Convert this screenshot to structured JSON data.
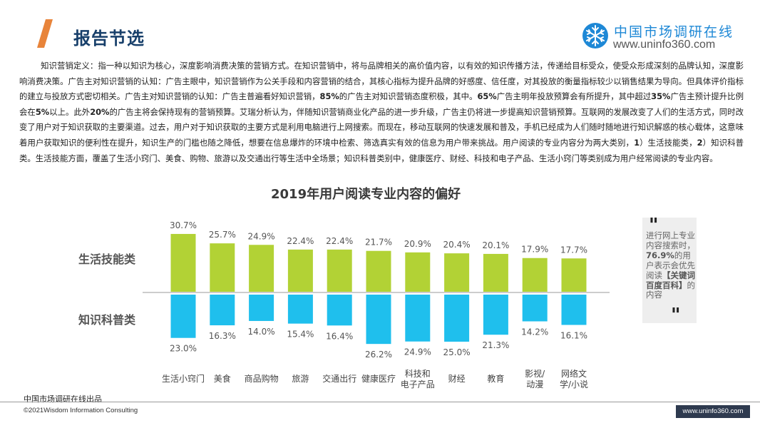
{
  "header": {
    "title": "报告节选",
    "accent_color": "#e8843a",
    "title_color": "#173f6a"
  },
  "logo": {
    "icon": "snowflake-logo-icon",
    "name_cn": "中国市场调研在线",
    "url": "www.uninfo360.com",
    "brand_color": "#1e88d6"
  },
  "body_text": {
    "p1": "知识营销定义：指一种以知识为核心，深度影响消费决策的营销方式。在知识营销中，将与品牌相关的高价值内容，以有效的知识传播方法，传递给目标受众，使受众形成深刻的品牌认知，深度影响消费决策。广告主对知识营销的认知：广告主眼中，知识营销作为公关手段和内容营销的结合，其核心指标为提升品牌的好感度、信任度，对其投放的衡量指标较少以销售结果为导向。但具体评价指标的建立与投放方式密切相关。广告主对知识营销的认知：广告主普遍看好知识营销，",
    "b1": "85%",
    "p2": "的广告主对知识营销态度积极，其中。",
    "b2": "65%",
    "p3": "广告主明年投放预算会有所提升，其中超过",
    "b3": "35%",
    "p4": "广告主预计提升比例会在",
    "b4": "5%",
    "p5": "以上。此外",
    "b5": "20%",
    "p6": "的广告主将会保持现有的营销预算。艾瑞分析认为，伴随知识营销商业化产品的进一步升级，广告主仍将进一步提高知识营销预算。互联网的发展改变了人们的生活方式，同时改变了用户对于知识获取的主要渠道。过去，用户对于知识获取的主要方式是利用电脑进行上网搜索。而现在，移动互联网的快速发展和普及，手机已经成为人们随时随地进行知识解惑的核心载体，这意味着用户获取知识的便利性在提升，知识生产的门槛也随之降低，想要在信息爆炸的环境中检索、筛选真实有效的信息为用户带来挑战。用户阅读的专业内容分为两大类别，",
    "b6": "1",
    "p7": "）生活技能类，",
    "b7": "2",
    "p8": "）知识科普类。生活技能方面，覆盖了生活小窍门、美食、购物、旅游以及交通出行等生活中全场景；知识科普类别中，健康医疗、财经、科技和电子产品、生活小窍门等类别成为用户经常阅读的专业内容。"
  },
  "chart_data": {
    "type": "bar",
    "title": "2019年用户阅读专业内容的偏好",
    "xlabel": "",
    "ylabel": "",
    "unit": "%",
    "layout": "diverging (series 1 above baseline, series 2 below)",
    "categories": [
      "生活小窍门",
      "美食",
      "商品购物",
      "旅游",
      "交通出行",
      "健康医疗",
      "科技和\n电子产品",
      "财经",
      "教育",
      "影视/\n动漫",
      "网络文\n学/小说"
    ],
    "series": [
      {
        "name": "生活技能类",
        "color": "#b2d235",
        "values": [
          30.7,
          25.7,
          24.9,
          22.4,
          22.4,
          21.7,
          20.9,
          20.4,
          20.1,
          17.9,
          17.7
        ],
        "labels": [
          "30.7%",
          "25.7%",
          "24.9%",
          "22.4%",
          "22.4%",
          "21.7%",
          "20.9%",
          "20.4%",
          "20.1%",
          "17.9%",
          "17.7%"
        ]
      },
      {
        "name": "知识科普类",
        "color": "#1fbfed",
        "values": [
          23.0,
          16.3,
          14.0,
          15.4,
          16.4,
          26.2,
          24.9,
          25.0,
          21.3,
          14.2,
          16.1
        ],
        "labels": [
          "23.0%",
          "16.3%",
          "14.0%",
          "15.4%",
          "16.4%",
          "26.2%",
          "24.9%",
          "25.0%",
          "21.3%",
          "14.2%",
          "16.1%"
        ]
      }
    ],
    "ylim": [
      0,
      31
    ],
    "grid": false,
    "legend": "left (row labels)"
  },
  "callout": {
    "pre": "进行网上专业内容搜索时，",
    "bold1": "76.9%",
    "mid": "的用户表示会优先阅读",
    "bold2": "【关键词百度百科】",
    "post": "的内容"
  },
  "footer": {
    "source": "中国市场调研在线出品",
    "copyright": "©2021Wisdom Information Consulting",
    "url": "www.uninfo360.com"
  }
}
